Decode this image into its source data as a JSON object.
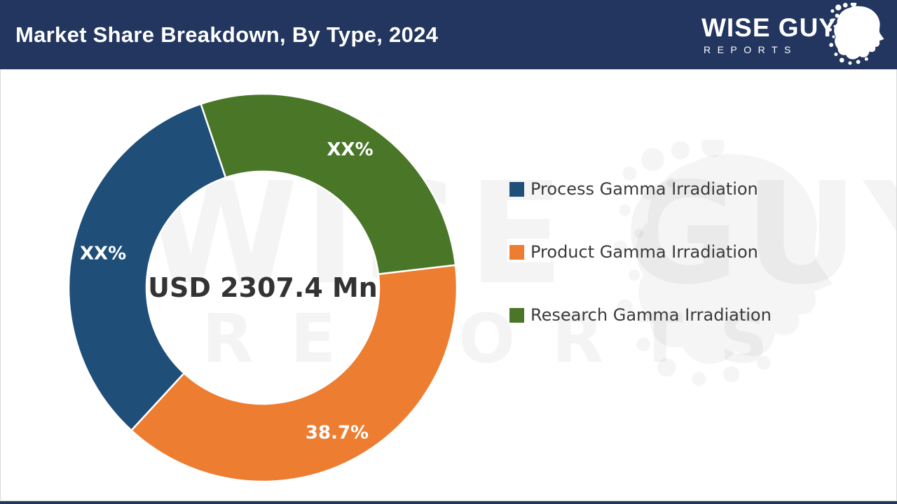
{
  "header": {
    "title": "Market Share Breakdown, By Type, 2024",
    "logo": {
      "line1": "WISE GUY",
      "line2": "REPORTS"
    }
  },
  "chart_data": {
    "type": "pie",
    "variant": "donut",
    "title": "Market Share Breakdown, By Type, 2024",
    "center_label": "USD 2307.4 Mn",
    "start_angle_deg": 108.6,
    "direction": "counterclockwise",
    "inner_radius_ratio": 0.6,
    "legend_position": "right",
    "series": [
      {
        "name": "Process Gamma Irradiation",
        "pct": 33.0,
        "displayed_label": "XX%",
        "color": "#1f4e79"
      },
      {
        "name": "Product Gamma Irradiation",
        "pct": 38.7,
        "displayed_label": "38.7%",
        "color": "#ed7d31"
      },
      {
        "name": "Research Gamma Irradiation",
        "pct": 28.3,
        "displayed_label": "XX%",
        "color": "#4a7628"
      }
    ]
  },
  "watermark": {
    "line1": "WISE GUY",
    "line2": "REPORTS"
  },
  "colors": {
    "header_bg": "#22365f",
    "footer_bg": "#22365f",
    "title_text": "#ffffff",
    "center_text": "#333333",
    "legend_text": "#3a3a3a",
    "slice_label_text": "#ffffff",
    "content_border": "#d9d9d9"
  }
}
